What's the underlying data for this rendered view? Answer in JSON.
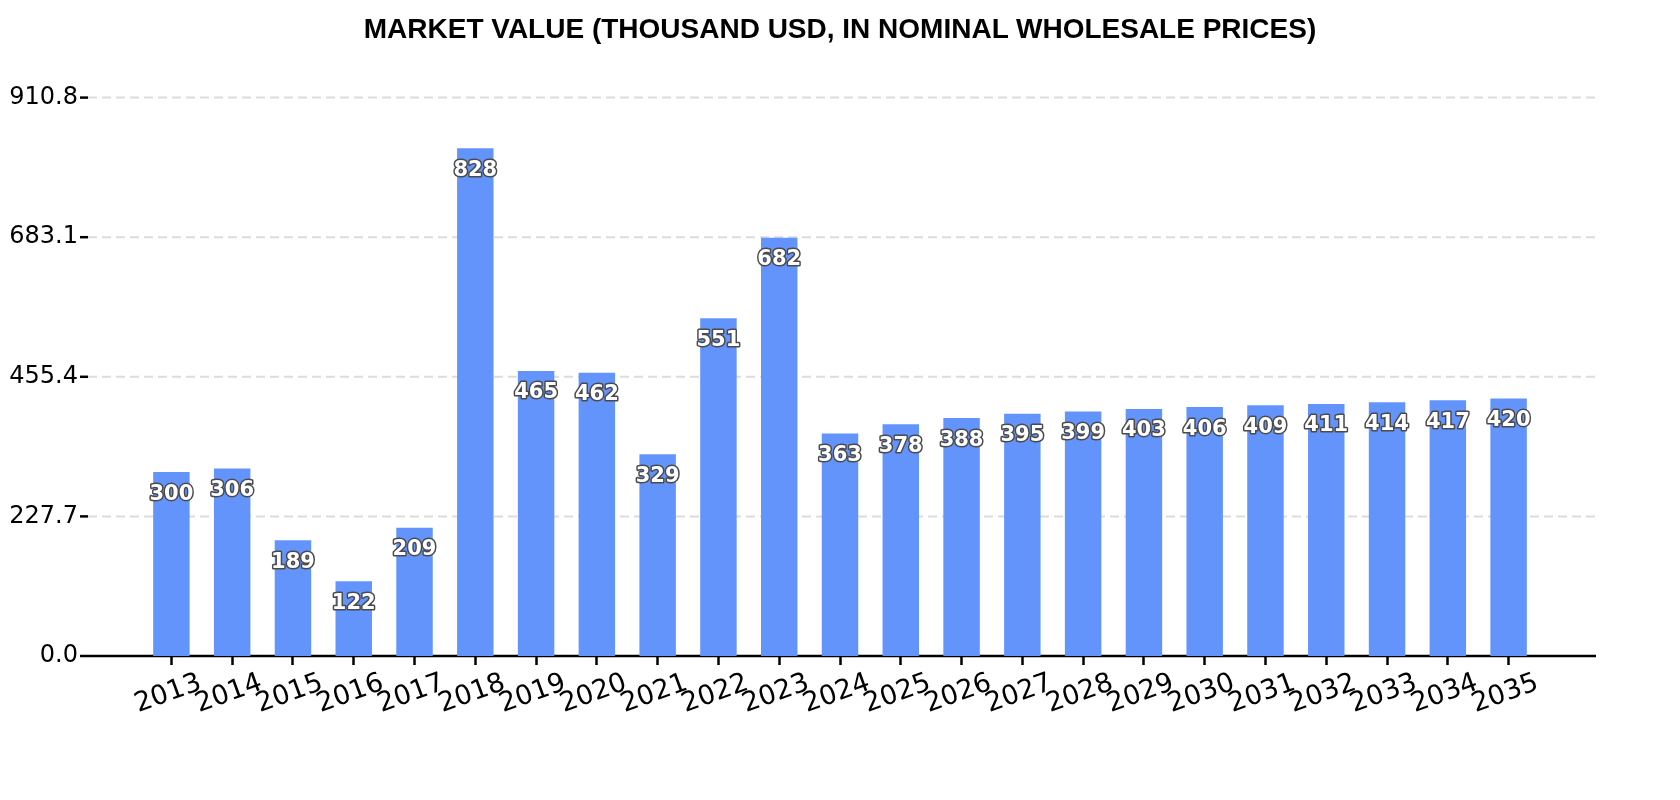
{
  "chart_data": {
    "type": "bar",
    "title": "MARKET VALUE (THOUSAND USD, IN NOMINAL WHOLESALE PRICES)",
    "categories": [
      "2013",
      "2014",
      "2015",
      "2016",
      "2017",
      "2018",
      "2019",
      "2020",
      "2021",
      "2022",
      "2023",
      "2024",
      "2025",
      "2026",
      "2027",
      "2028",
      "2029",
      "2030",
      "2031",
      "2032",
      "2033",
      "2034",
      "2035"
    ],
    "values": [
      300,
      306,
      189,
      122,
      209,
      828,
      465,
      462,
      329,
      551,
      682,
      363,
      378,
      388,
      395,
      399,
      403,
      406,
      409,
      411,
      414,
      417,
      420
    ],
    "color": "#6394fc",
    "ylim": [
      0,
      910.8
    ],
    "yticks": [
      {
        "value": 0,
        "label": "0.0"
      },
      227.7,
      455.4,
      683.1,
      910.8
    ],
    "grid": "y",
    "data_labels": true
  }
}
